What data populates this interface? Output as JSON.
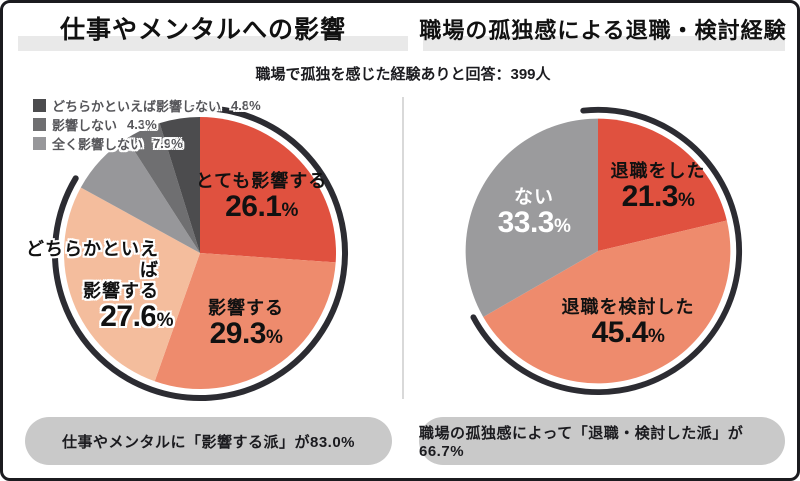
{
  "chart_data": [
    {
      "type": "pie",
      "title": "仕事やメンタルへの影響",
      "summary": "仕事やメンタルに「影響する派」が83.0%",
      "legend_position": "top-left",
      "start_angle_deg": 0,
      "clockwise": true,
      "slices": [
        {
          "label": "とても影響する",
          "value": 26.1,
          "pct": "26.1",
          "unit": "%",
          "color": "#e0513f"
        },
        {
          "label": "影響する",
          "value": 29.3,
          "pct": "29.3",
          "unit": "%",
          "color": "#ee8b6d"
        },
        {
          "label": "どちらかといえば影響する",
          "label_l1": "どちらかといえば",
          "label_l2": "影響する",
          "value": 27.6,
          "pct": "27.6",
          "unit": "%",
          "color": "#f4bd9d"
        },
        {
          "label": "全く影響しない",
          "value": 7.9,
          "pct": "7.9",
          "unit": "%",
          "color": "#97979a"
        },
        {
          "label": "影響しない",
          "value": 4.3,
          "pct": "4.3",
          "unit": "%",
          "color": "#6f6f71"
        },
        {
          "label": "どちらかといえば影響しない",
          "value": 4.8,
          "pct": "4.8",
          "unit": "%",
          "color": "#4c4c4e"
        }
      ],
      "emphasis_arc": {
        "start_deg": -3,
        "end_deg": 301,
        "color": "#2c2c32"
      }
    },
    {
      "type": "pie",
      "title": "職場の孤独感による退職・検討経験",
      "subtitle": "職場で孤独を感じた経験ありと回答：399人",
      "summary": "職場の孤独感によって「退職・検討した派」が66.7%",
      "start_angle_deg": 0,
      "clockwise": true,
      "slices": [
        {
          "label": "退職をした",
          "value": 21.3,
          "pct": "21.3",
          "unit": "%",
          "color": "#e0513f"
        },
        {
          "label": "退職を検討した",
          "value": 45.4,
          "pct": "45.4",
          "unit": "%",
          "color": "#ee8b6d"
        },
        {
          "label": "ない",
          "value": 33.3,
          "pct": "33.3",
          "unit": "%",
          "color": "#9b9b9d",
          "text_color": "#ffffff"
        }
      ],
      "emphasis_arc": {
        "start_deg": -6,
        "end_deg": 242,
        "color": "#2c2c32"
      }
    }
  ]
}
